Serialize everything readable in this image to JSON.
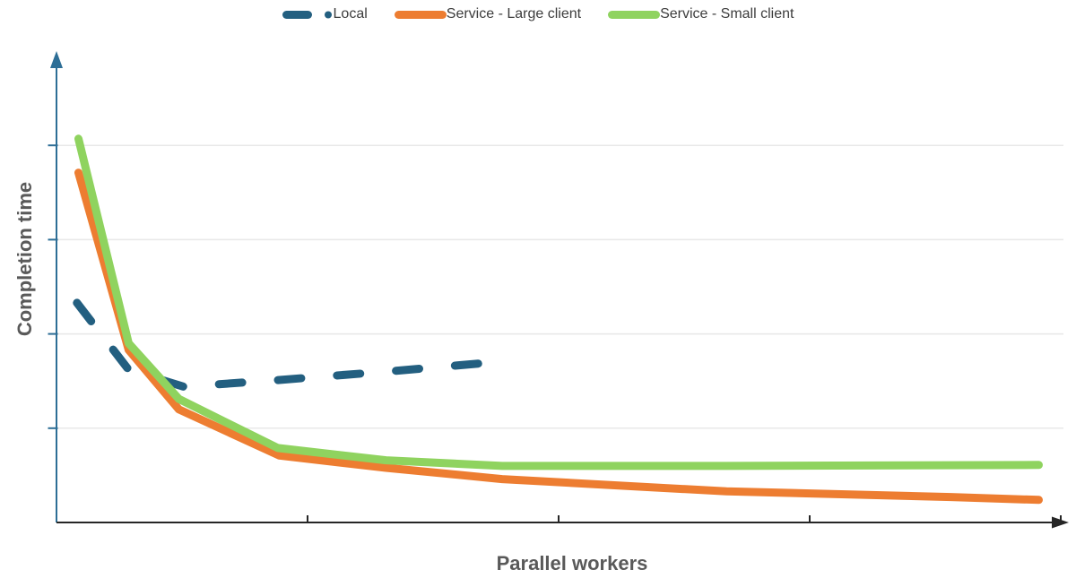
{
  "chart_data": {
    "type": "line",
    "title": "",
    "xlabel": "Parallel workers",
    "ylabel": "Completion time",
    "x_axis": {
      "label": "Parallel workers",
      "min": 0,
      "max": 64,
      "ticks": [
        16,
        32,
        48,
        64
      ],
      "tick_labels": "none",
      "arrow": true
    },
    "y_axis": {
      "label": "Completion time",
      "min": 0,
      "max": 5,
      "ticks": [
        1,
        2,
        3,
        4
      ],
      "tick_labels": "none",
      "arrow": true
    },
    "grid": "horizontal",
    "legend_position": "top-center",
    "value_units": "relative (axes are unlabeled; 1.0 = one gridline interval)",
    "series": [
      {
        "name": "Local",
        "color": "#235F80",
        "line_style": "dashed",
        "points": [
          [
            1.3,
            2.33
          ],
          [
            4.6,
            1.62
          ],
          [
            8.1,
            1.44
          ],
          [
            14.1,
            1.51
          ],
          [
            21.0,
            1.6
          ],
          [
            28.6,
            1.71
          ]
        ]
      },
      {
        "name": "Service - Large client",
        "color": "#ED7D31",
        "line_style": "solid",
        "points": [
          [
            1.4,
            3.71
          ],
          [
            4.6,
            1.83
          ],
          [
            7.8,
            1.2
          ],
          [
            14.2,
            0.71
          ],
          [
            21.0,
            0.58
          ],
          [
            28.4,
            0.46
          ],
          [
            42.7,
            0.33
          ],
          [
            57.0,
            0.27
          ],
          [
            62.6,
            0.24
          ]
        ]
      },
      {
        "name": "Service - Small client",
        "color": "#8FD35F",
        "line_style": "solid",
        "points": [
          [
            1.4,
            4.07
          ],
          [
            4.6,
            1.9
          ],
          [
            7.8,
            1.31
          ],
          [
            14.1,
            0.79
          ],
          [
            21.0,
            0.66
          ],
          [
            28.4,
            0.6
          ],
          [
            42.7,
            0.6
          ],
          [
            62.6,
            0.61
          ]
        ]
      }
    ]
  },
  "colors": {
    "background": "#FFFFFF",
    "y_axis": "#2D6E96",
    "x_axis": "#262626",
    "gridline": "#E8E8E8",
    "axis_title_text": "#595959",
    "legend_text": "#3D3D3D"
  }
}
